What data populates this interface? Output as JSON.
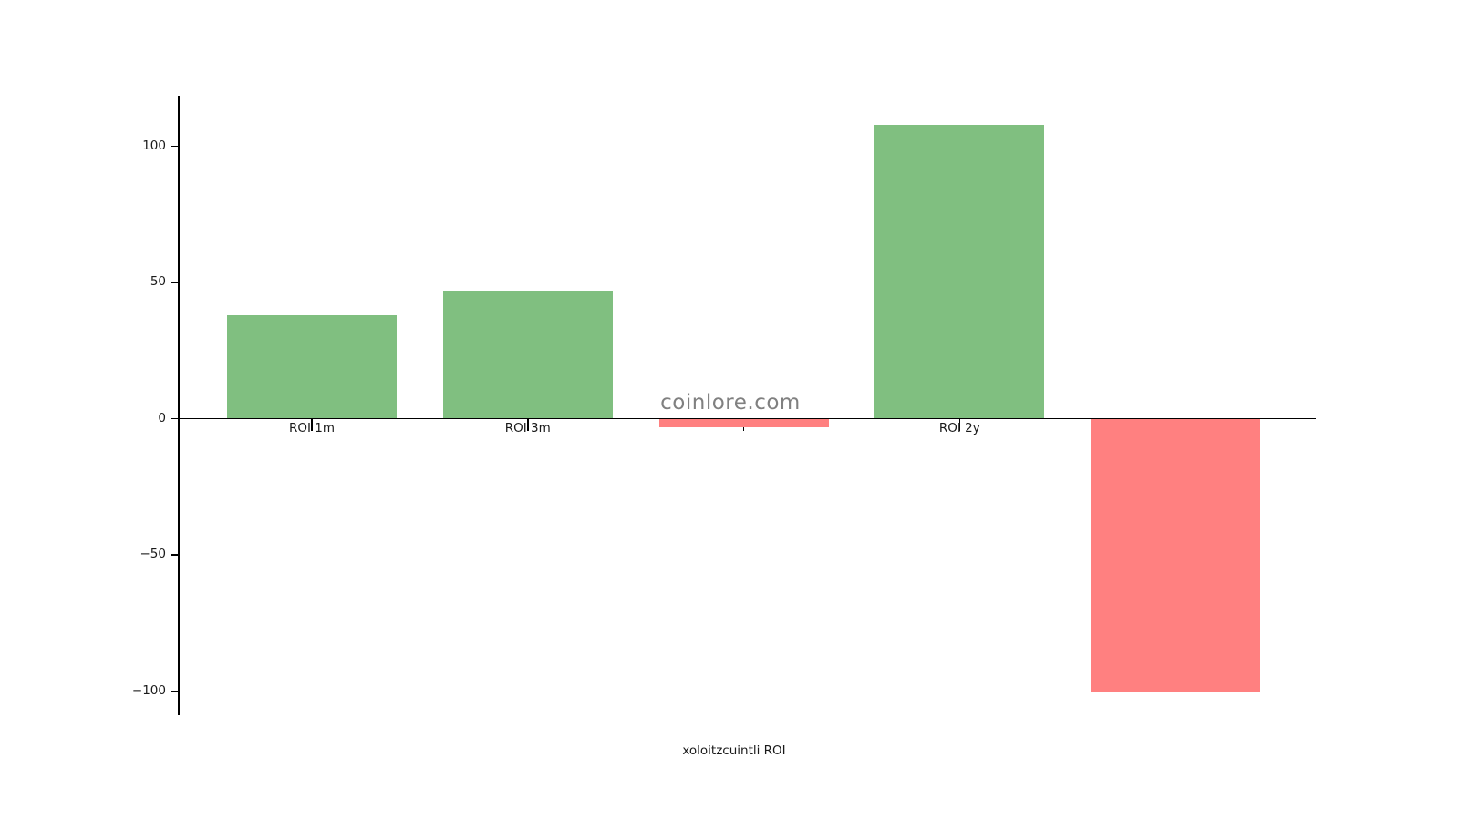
{
  "watermark": {
    "text": "coinlore.com",
    "color": "#808080"
  },
  "chart_data": {
    "type": "bar",
    "title": "",
    "xlabel": "xoloitzcuintli ROI",
    "ylabel": "",
    "categories": [
      "ROI 1m",
      "ROI 3m",
      "",
      "ROI 2y",
      ""
    ],
    "values": [
      38,
      47,
      -3,
      108,
      -100
    ],
    "x_tick_labels_visible": [
      true,
      true,
      false,
      true,
      false
    ],
    "yticks": [
      100,
      50,
      0,
      -50,
      -100
    ],
    "ylim": [
      -109,
      119
    ],
    "bar_colors": [
      "#80bf80",
      "#80bf80",
      "#ff8080",
      "#80bf80",
      "#ff8080"
    ],
    "positive_color": "#80bf80",
    "negative_color": "#ff8080",
    "grid": false,
    "legend": "none",
    "axis_color": "#000000",
    "text_color": "#1a1a1a"
  }
}
